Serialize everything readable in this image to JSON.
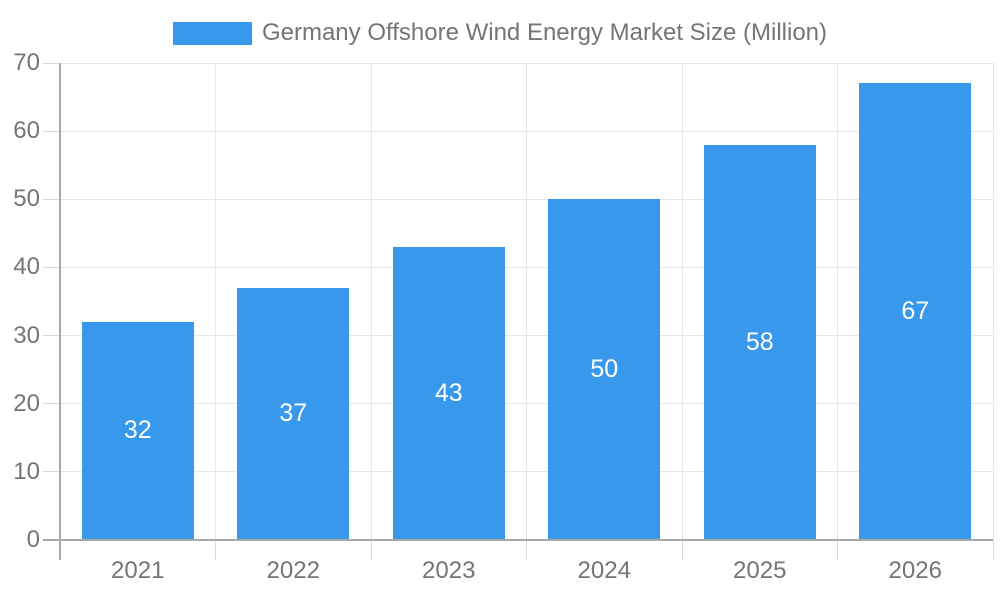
{
  "legend": {
    "label": "Germany Offshore Wind Energy Market Size (Million)"
  },
  "chart_data": {
    "type": "bar",
    "title": "Germany Offshore Wind Energy Market Size (Million)",
    "categories": [
      "2021",
      "2022",
      "2023",
      "2024",
      "2025",
      "2026"
    ],
    "values": [
      32,
      37,
      43,
      50,
      58,
      67
    ],
    "xlabel": "",
    "ylabel": "",
    "ylim": [
      0,
      70
    ],
    "y_ticks": [
      0,
      10,
      20,
      30,
      40,
      50,
      60,
      70
    ],
    "grid": true,
    "legend_position": "top",
    "colors": {
      "bar": "#3898ec",
      "value_label": "#ffffff",
      "axis_text": "#757575",
      "gridline": "#e6e6e6",
      "tick": "#d6d6d6",
      "axis_line": "#a8a8a8"
    }
  }
}
